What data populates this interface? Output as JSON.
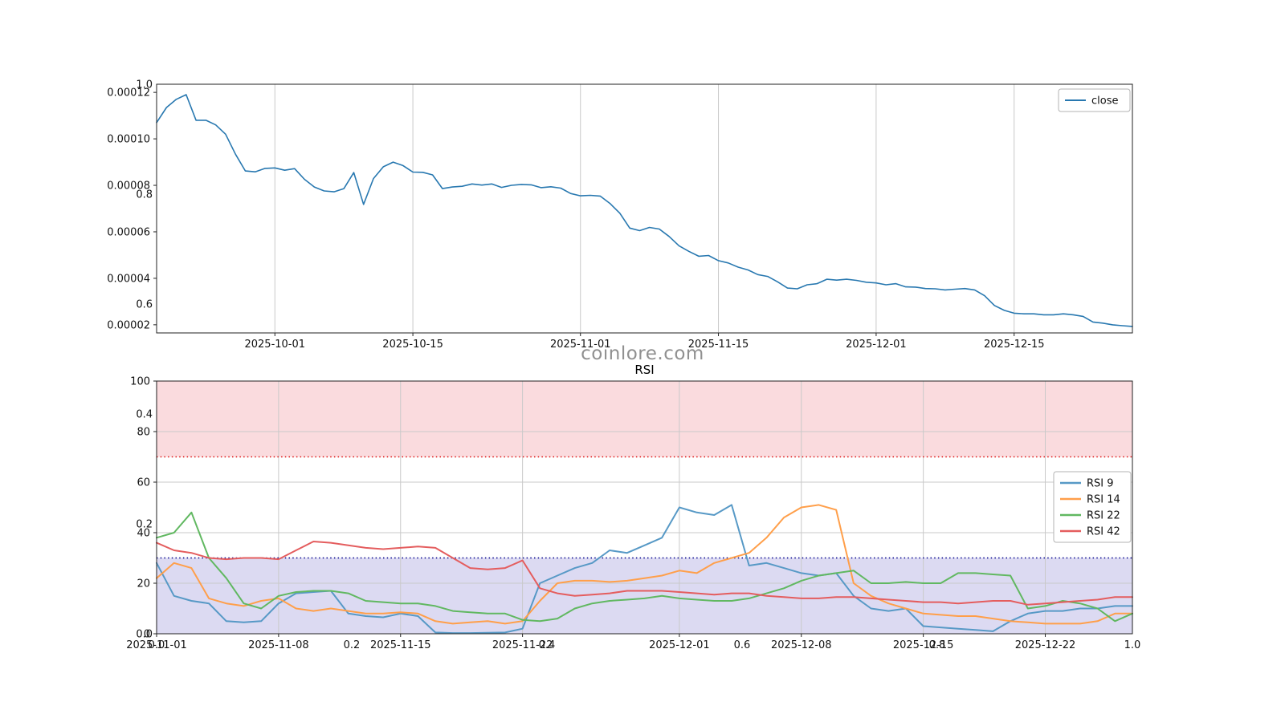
{
  "watermark": "coinlore.com",
  "overlay_axis": {
    "yticks": [
      "1.0",
      "0.8",
      "0.6",
      "0.4",
      "0.2",
      "0.0"
    ],
    "xticks": [
      "0.0",
      "0.2",
      "0.4",
      "0.6",
      "0.8",
      "1.0"
    ]
  },
  "chart_data": [
    {
      "id": "price",
      "type": "line",
      "title": "",
      "legend_position": "upper right",
      "xlim": [
        "2025-09-19",
        "2025-12-27"
      ],
      "ylim": [
        1.65e-05,
        0.0001235
      ],
      "xticks": [
        "2025-10-01",
        "2025-10-15",
        "2025-11-01",
        "2025-11-15",
        "2025-12-01",
        "2025-12-15"
      ],
      "yticks": {
        "values": [
          0.00012,
          0.0001,
          8e-05,
          6e-05,
          4e-05,
          2e-05
        ],
        "labels": [
          "0.00012",
          "0.00010",
          "0.00008",
          "0.00006",
          "0.00004",
          "0.00002"
        ]
      },
      "series": [
        {
          "name": "close",
          "color": "#2878b0",
          "start": "2025-09-19",
          "step_days": 1,
          "scale": 1e-06,
          "values": [
            107,
            113.5,
            117,
            119,
            108,
            108,
            106,
            102,
            93.4,
            86.2,
            85.8,
            87.3,
            87.5,
            86.5,
            87.2,
            82.6,
            79.3,
            77.6,
            77.2,
            78.6,
            85.5,
            71.8,
            82.9,
            88,
            90,
            88.5,
            85.7,
            85.6,
            84.5,
            78.6,
            79.3,
            79.6,
            80.6,
            80.1,
            80.6,
            79.1,
            80,
            80.4,
            80.2,
            79,
            79.4,
            78.8,
            76.5,
            75.5,
            75.7,
            75.4,
            72.2,
            68,
            61.6,
            60.5,
            61.9,
            61.2,
            58,
            54,
            51.6,
            49.5,
            49.8,
            47.6,
            46.6,
            44.8,
            43.6,
            41.6,
            40.8,
            38.5,
            35.8,
            35.5,
            37.2,
            37.7,
            39.6,
            39.2,
            39.6,
            39.1,
            38.3,
            38,
            37.2,
            37.7,
            36.3,
            36.2,
            35.6,
            35.5,
            35,
            35.3,
            35.6,
            35,
            32.5,
            28.3,
            26.2,
            25,
            24.7,
            24.7,
            24.3,
            24.3,
            24.7,
            24.3,
            23.6,
            21.2,
            20.7,
            20,
            19.6,
            19.3
          ]
        }
      ]
    },
    {
      "id": "rsi",
      "type": "line",
      "title": "RSI",
      "legend_position": "right",
      "xlim": [
        "2025-11-01",
        "2025-12-27"
      ],
      "ylim": [
        0,
        100
      ],
      "xticks": [
        "2025-11-01",
        "2025-11-08",
        "2025-11-15",
        "2025-11-22",
        "2025-12-01",
        "2025-12-08",
        "2025-12-15",
        "2025-12-22"
      ],
      "yticks": {
        "values": [
          100,
          80,
          60,
          40,
          20,
          0
        ],
        "labels": [
          "100",
          "80",
          "60",
          "40",
          "20",
          "0"
        ]
      },
      "bands": [
        {
          "name": "overbought-band",
          "from": 70,
          "to": 100,
          "color": "#fadbde"
        },
        {
          "name": "oversold-band",
          "from": 0,
          "to": 30,
          "color": "#dcdaf2"
        }
      ],
      "hlines": [
        {
          "name": "overbought-threshold-line",
          "y": 70,
          "color": "#dd1111",
          "style": "dotted"
        },
        {
          "name": "oversold-threshold-line",
          "y": 30,
          "color": "#00008b",
          "style": "dotted"
        }
      ],
      "series": [
        {
          "name": "RSI 9",
          "color": "#5799c6",
          "start": "2025-11-01",
          "step_days": 1,
          "values": [
            28,
            15,
            13,
            12,
            5,
            4.5,
            5,
            12,
            16,
            16.5,
            17,
            8,
            7,
            6.5,
            8,
            7,
            0.5,
            0.3,
            0.3,
            0.4,
            0.5,
            2,
            20,
            23,
            26,
            28,
            33,
            32,
            35,
            38,
            50,
            48,
            47,
            51,
            27,
            28,
            26,
            24,
            23,
            24,
            15,
            10,
            9,
            10,
            3,
            2.5,
            2,
            1.5,
            1,
            5,
            8,
            9,
            9,
            10,
            10,
            11,
            11
          ]
        },
        {
          "name": "RSI 14",
          "color": "#ff9f4a",
          "start": "2025-11-01",
          "step_days": 1,
          "values": [
            22,
            28,
            26,
            14,
            12,
            11,
            13,
            14,
            10,
            9,
            10,
            9,
            8,
            8,
            8.5,
            8,
            5,
            4,
            4.5,
            5,
            4,
            5,
            13,
            20,
            21,
            21,
            20.5,
            21,
            22,
            23,
            25,
            24,
            28,
            30,
            32,
            38,
            46,
            50,
            51,
            49,
            20,
            15,
            12,
            10,
            8,
            7.5,
            7,
            7,
            6,
            5,
            4.5,
            4,
            4,
            4,
            5,
            8,
            8
          ]
        },
        {
          "name": "RSI 22",
          "color": "#61b861",
          "start": "2025-11-01",
          "step_days": 1,
          "values": [
            38,
            40,
            48,
            30,
            22,
            12,
            10,
            15,
            16.5,
            17,
            17,
            16,
            13,
            12.5,
            12,
            12,
            11,
            9,
            8.5,
            8,
            8,
            5.5,
            5,
            6,
            10,
            12,
            13,
            13.5,
            14,
            15,
            14,
            13.5,
            13,
            13,
            14,
            16,
            18,
            21,
            23,
            24,
            25,
            20,
            20,
            20.5,
            20,
            20,
            24,
            24,
            23.5,
            23,
            10,
            11,
            13,
            12,
            10,
            5,
            8
          ]
        },
        {
          "name": "RSI 42",
          "color": "#e45d5e",
          "start": "2025-11-01",
          "step_days": 1,
          "values": [
            36,
            33,
            32,
            30,
            29.5,
            30,
            30,
            29.5,
            33,
            36.5,
            36,
            35,
            34,
            33.5,
            34,
            34.5,
            34,
            30,
            26,
            25.5,
            26,
            29,
            18,
            16,
            15,
            15.5,
            16,
            17,
            17,
            17,
            16.5,
            16,
            15.5,
            16,
            16,
            15,
            14.5,
            14,
            14,
            14.5,
            14.5,
            14,
            13.5,
            13,
            12.5,
            12.5,
            12,
            12.5,
            13,
            13,
            11.5,
            12,
            12.5,
            13,
            13.5,
            14.5,
            14.5
          ]
        }
      ]
    }
  ]
}
